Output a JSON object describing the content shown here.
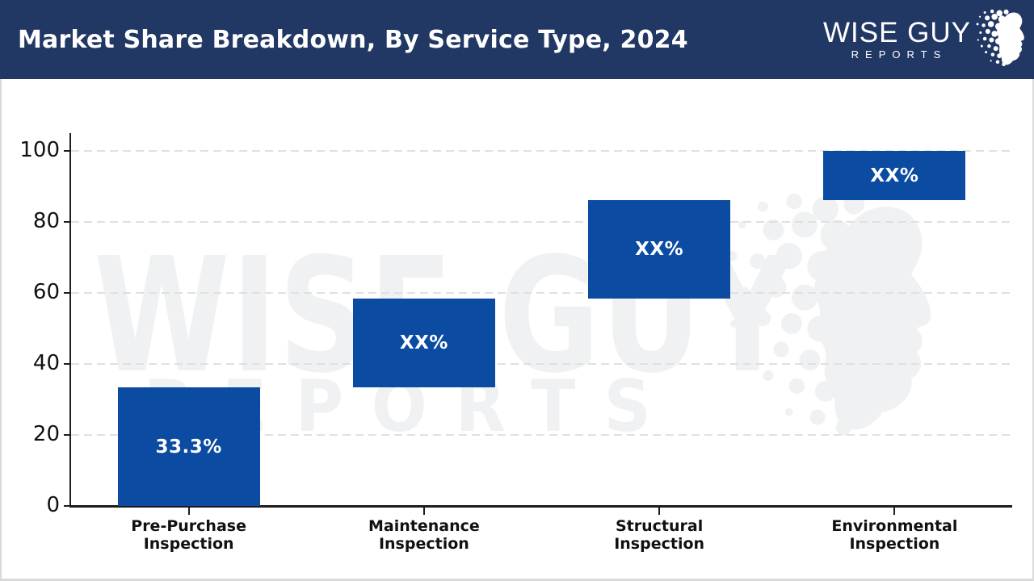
{
  "header": {
    "title": "Market Share Breakdown, By Service Type, 2024"
  },
  "brand": {
    "name": "WISE GUY",
    "reports": "REPORTS",
    "head_icon": "dotted-profile-head-icon"
  },
  "watermark": {
    "name": "WISE GUY",
    "reports": "REPORTS",
    "head_icon": "dotted-profile-head-icon"
  },
  "colors": {
    "header_bg": "#213764",
    "title_text": "#ffffff",
    "bar": "#0b4ba1",
    "bar_label_text": "#ffffff",
    "grid": "#e0e0e0",
    "axis": "#1c1c1c",
    "tick_text": "#111111",
    "watermark": "#f0f1f2",
    "panel_border": "#d9d9d9"
  },
  "chart_data": {
    "type": "bar",
    "subtype": "floating-waterfall",
    "title": "Market Share Breakdown, By Service Type, 2024",
    "categories": [
      "Pre-Purchase Inspection",
      "Maintenance Inspection",
      "Structural Inspection",
      "Environmental Inspection"
    ],
    "category_lines": [
      [
        "Pre-Purchase",
        "Inspection"
      ],
      [
        "Maintenance",
        "Inspection"
      ],
      [
        "Structural",
        "Inspection"
      ],
      [
        "Environmental",
        "Inspection"
      ]
    ],
    "bars": [
      {
        "category": "Pre-Purchase Inspection",
        "base": 0,
        "top": 33.3,
        "value_label": "33.3%"
      },
      {
        "category": "Maintenance Inspection",
        "base": 33.3,
        "top": 58.3,
        "value_label": "XX%"
      },
      {
        "category": "Structural Inspection",
        "base": 58.3,
        "top": 86.1,
        "value_label": "XX%"
      },
      {
        "category": "Environmental Inspection",
        "base": 86.1,
        "top": 100,
        "value_label": "XX%"
      }
    ],
    "xlabel": "",
    "ylabel": "",
    "ylim": [
      0,
      100
    ],
    "yticks": [
      0,
      20,
      40,
      60,
      80,
      100
    ],
    "grid": "horizontal-dashed",
    "legend_position": "none"
  }
}
